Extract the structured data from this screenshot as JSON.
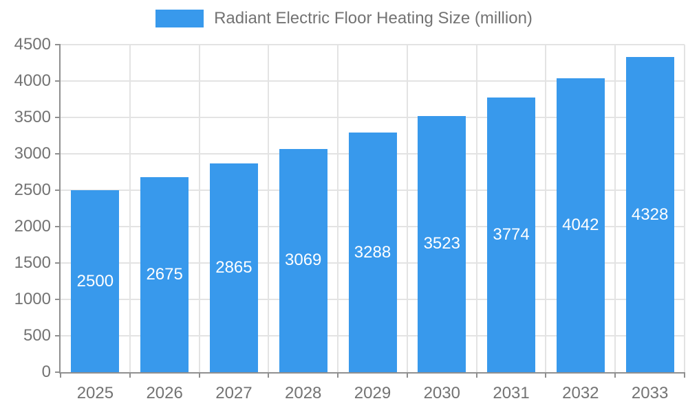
{
  "legend": {
    "label": "Radiant Electric Floor Heating Size (million)"
  },
  "colors": {
    "bar": "#3899ec",
    "grid": "#e3e3e3",
    "axis": "#8f8f8f",
    "tick_text": "#737373",
    "value_label": "#ffffff",
    "background": "#ffffff"
  },
  "chart_data": {
    "type": "bar",
    "title": "Radiant Electric Floor Heating Size (million)",
    "categories": [
      "2025",
      "2026",
      "2027",
      "2028",
      "2029",
      "2030",
      "2031",
      "2032",
      "2033"
    ],
    "values": [
      2500,
      2675,
      2865,
      3069,
      3288,
      3523,
      3774,
      4042,
      4328
    ],
    "xlabel": "",
    "ylabel": "",
    "ylim": [
      0,
      4500
    ],
    "yticks": [
      0,
      500,
      1000,
      1500,
      2000,
      2500,
      3000,
      3500,
      4000,
      4500
    ],
    "grid": true,
    "legend_position": "top",
    "value_labels": "inside-center"
  }
}
